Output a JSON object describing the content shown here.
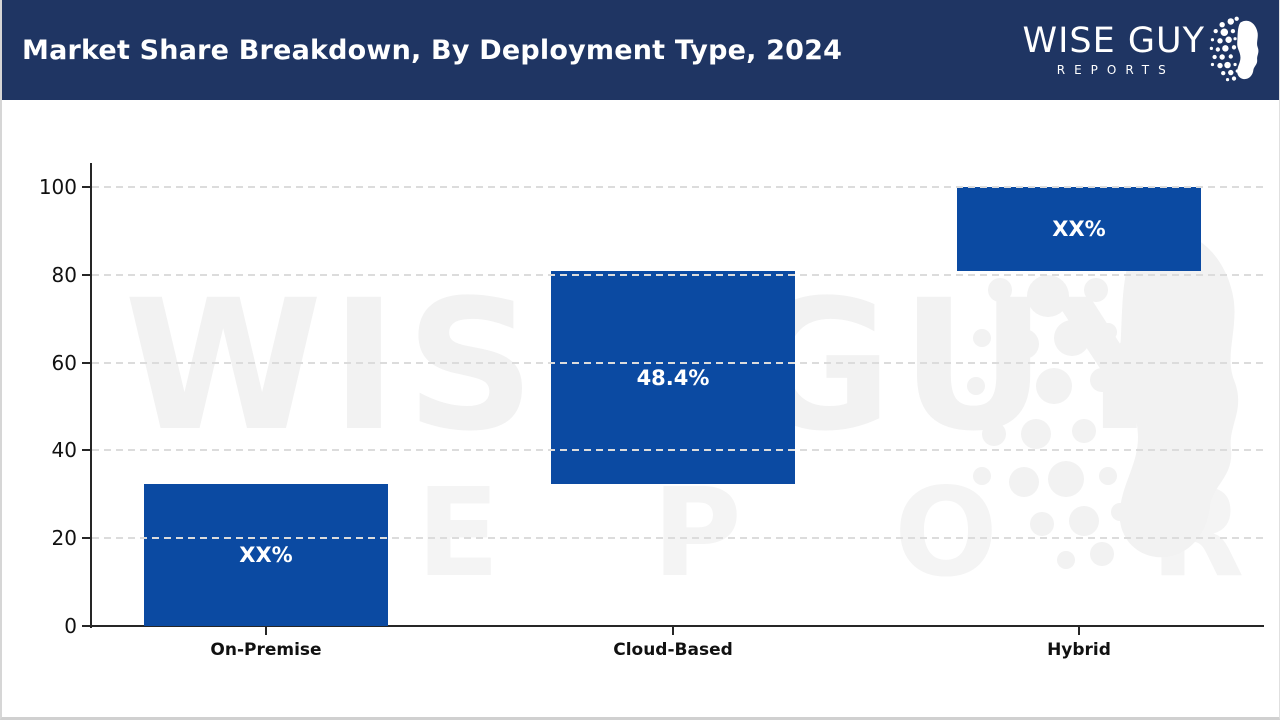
{
  "header": {
    "title": "Market Share Breakdown, By Deployment Type, 2024",
    "logo": {
      "line1": "WISE GUY",
      "line2": "REPORTS"
    }
  },
  "watermark": {
    "line1": "WISE GUY",
    "line2": "R E P O R T S"
  },
  "colors": {
    "header_bg": "#1f3563",
    "bar_blue": "#0b4aa2",
    "grid": "#dcdcdc",
    "axis": "#262626",
    "bar_label": "#ffffff",
    "watermark": "#f2f2f2"
  },
  "chart_data": {
    "type": "bar",
    "subtype": "floating-waterfall-segments",
    "title": "Market Share Breakdown, By Deployment Type, 2024",
    "categories": [
      "On-Premise",
      "Cloud-Based",
      "Hybrid"
    ],
    "series": [
      {
        "name": "Market Share (%)",
        "bases": [
          0,
          32.4,
          80.8
        ],
        "values": [
          32.4,
          48.4,
          19.2
        ],
        "labels": [
          "XX%",
          "48.4%",
          "XX%"
        ]
      }
    ],
    "yticks": [
      0,
      20,
      40,
      60,
      80,
      100
    ],
    "ylim": [
      0,
      105.5
    ],
    "xlabel": "",
    "ylabel": "",
    "grid": "horizontal-dashed-over-bars",
    "legend": "none"
  }
}
